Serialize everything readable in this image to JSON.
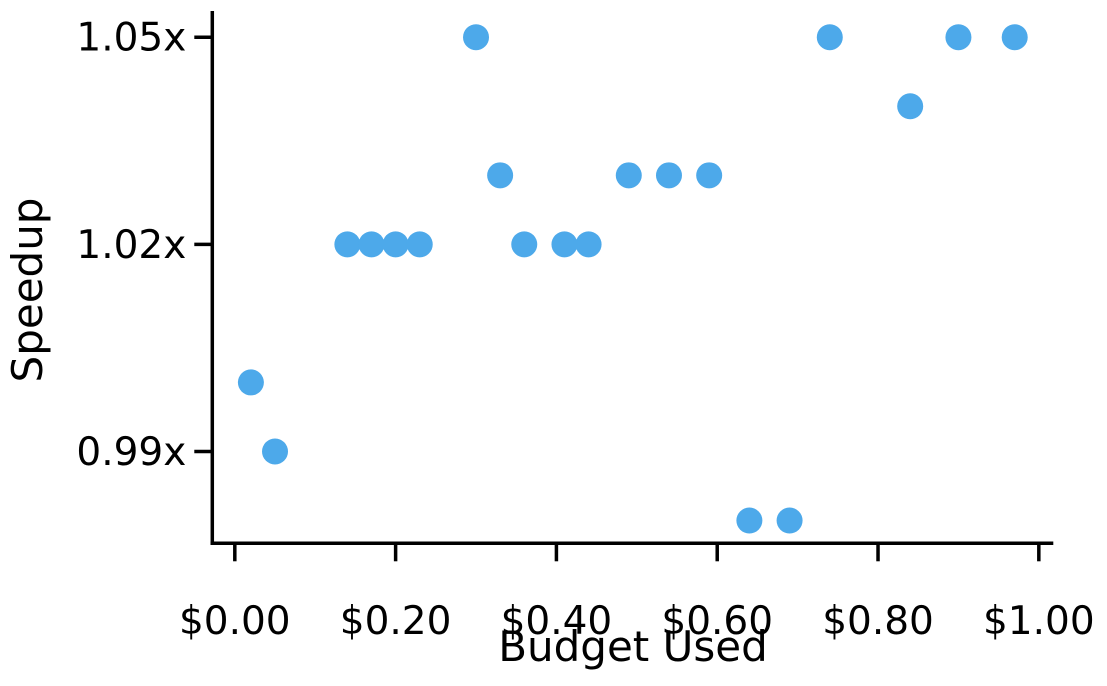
{
  "figure": {
    "background": "#ffffff",
    "text_color": "#000000"
  },
  "chart_data": {
    "type": "scatter",
    "title": "",
    "xlabel": "Budget Used",
    "ylabel": "Speedup",
    "x": [
      0.02,
      0.05,
      0.14,
      0.17,
      0.2,
      0.23,
      0.3,
      0.33,
      0.36,
      0.41,
      0.44,
      0.49,
      0.54,
      0.59,
      0.64,
      0.69,
      0.74,
      0.84,
      0.9,
      0.97
    ],
    "y": [
      1.0,
      0.99,
      1.02,
      1.02,
      1.02,
      1.02,
      1.05,
      1.03,
      1.02,
      1.02,
      1.02,
      1.03,
      1.03,
      1.03,
      0.98,
      0.98,
      1.05,
      1.04,
      1.05,
      1.05
    ],
    "x_ticks": {
      "values": [
        0.0,
        0.2,
        0.4,
        0.6,
        0.8,
        1.0
      ],
      "labels": [
        "$0.00",
        "$0.20",
        "$0.40",
        "$0.60",
        "$0.80",
        "$1.00"
      ]
    },
    "y_ticks": {
      "values": [
        0.99,
        1.02,
        1.05
      ],
      "labels": [
        "0.99x",
        "1.02x",
        "1.05x"
      ]
    },
    "xlim": [
      -0.028,
      1.018
    ],
    "ylim": [
      0.9767,
      1.0538
    ],
    "grid": false,
    "marker": {
      "color": "#4DA9EA",
      "radius_px": 13
    },
    "axis_color": "#000000"
  }
}
